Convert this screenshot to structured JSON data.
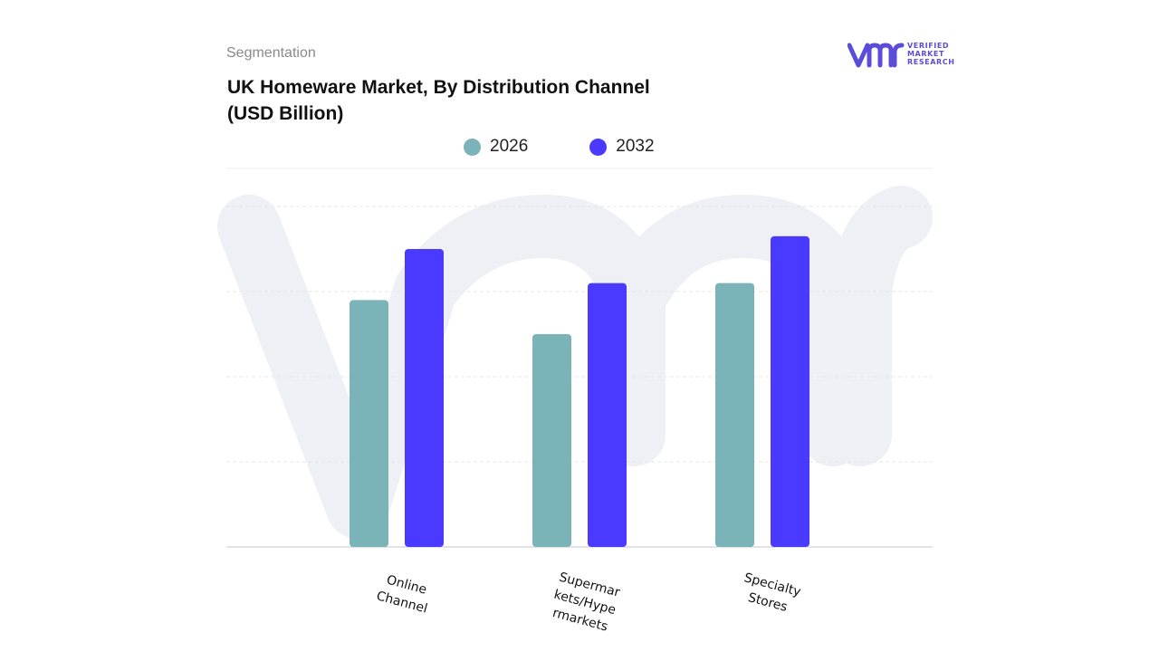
{
  "header": {
    "segment_label": "Segmentation",
    "title_line1": "UK Homeware Market, By Distribution Channel",
    "title_line2": "(USD Billion)"
  },
  "logo": {
    "text_line1": "VERIFIED",
    "text_line2": "MARKET",
    "text_line3": "RESEARCH",
    "color": "#5b4dd9"
  },
  "chart_data": {
    "type": "bar",
    "categories": [
      "Online Channel",
      "Supermarkets/Hypermarkets",
      "Specialty Stores"
    ],
    "category_label_lines": [
      [
        "Online",
        "Channel"
      ],
      [
        "Supermar",
        "kets/Hype",
        "rmarkets"
      ],
      [
        "Specialty",
        "Stores"
      ]
    ],
    "series": [
      {
        "name": "2026",
        "values": [
          2.9,
          2.5,
          3.1
        ],
        "color": "#7ab3b8"
      },
      {
        "name": "2032",
        "values": [
          3.5,
          3.1,
          3.65
        ],
        "color": "#4a3aff"
      }
    ],
    "ylim": [
      0,
      4
    ],
    "grid": true,
    "legend": "top-center",
    "xlabel": "",
    "ylabel": ""
  }
}
